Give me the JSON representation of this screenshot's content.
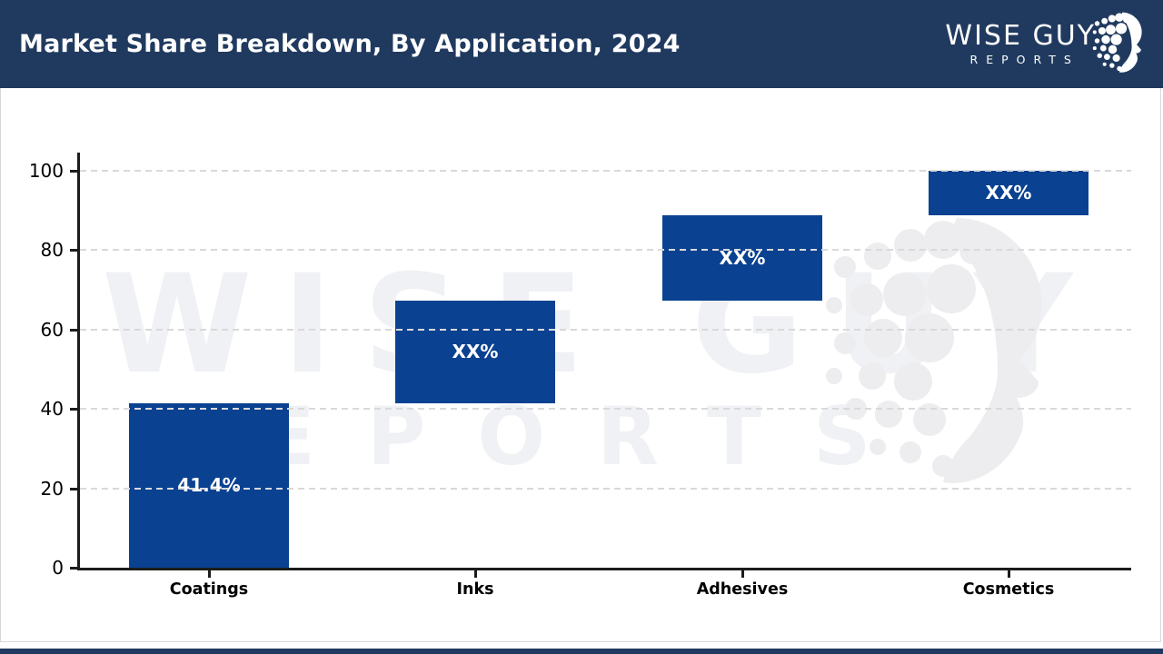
{
  "header": {
    "title": "Market Share Breakdown, By Application, 2024",
    "bg_color": "#203a5f",
    "logo": {
      "line1": "WISE GUY",
      "line2": "REPORTS"
    }
  },
  "watermark": {
    "line1": "WISE GUY",
    "line2": "REPORTS"
  },
  "chart_data": {
    "type": "bar",
    "variant": "waterfall",
    "title": "Market Share Breakdown, By Application, 2024",
    "categories": [
      "Coatings",
      "Inks",
      "Adhesives",
      "Cosmetics"
    ],
    "segments": [
      {
        "category": "Coatings",
        "start": 0,
        "end": 41.4,
        "label": "41.4%"
      },
      {
        "category": "Inks",
        "start": 41.4,
        "end": 67.3,
        "label": "XX%"
      },
      {
        "category": "Adhesives",
        "start": 67.3,
        "end": 88.6,
        "label": "XX%"
      },
      {
        "category": "Cosmetics",
        "start": 88.6,
        "end": 100,
        "label": "XX%"
      }
    ],
    "ylim": [
      0,
      100
    ],
    "yticks": [
      0,
      20,
      40,
      60,
      80,
      100
    ],
    "bar_color": "#0a4191",
    "grid": true,
    "legend": false,
    "xlabel": "",
    "ylabel": ""
  }
}
